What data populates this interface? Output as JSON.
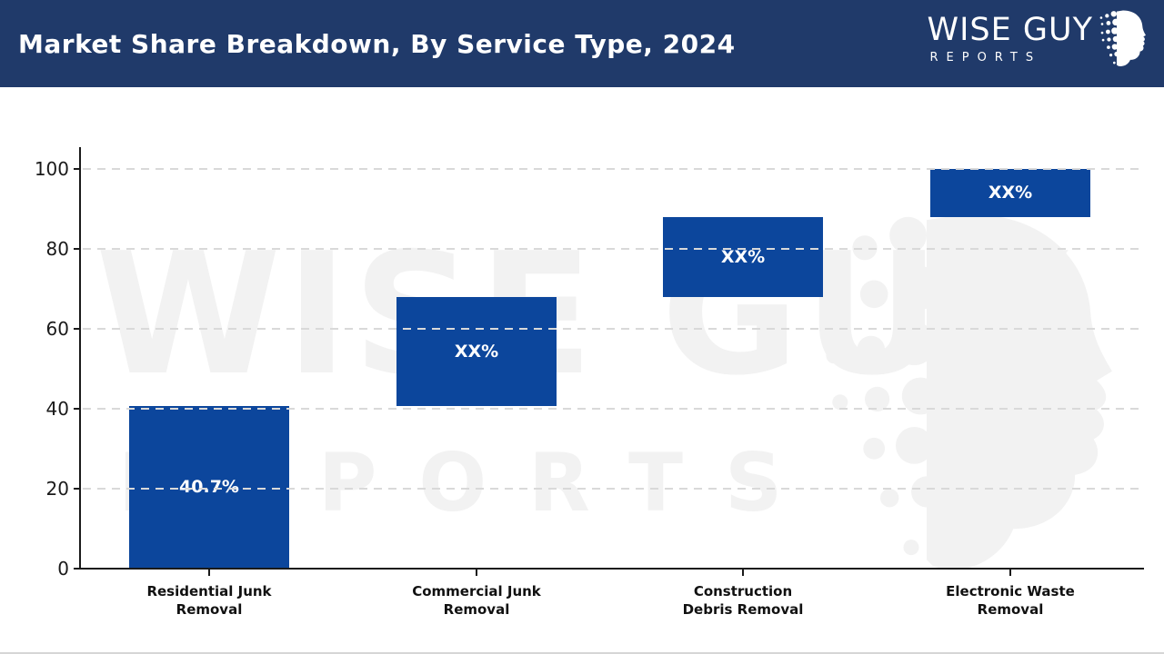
{
  "header": {
    "title": "Market Share Breakdown, By Service Type, 2024",
    "logo": {
      "line1": "WISE GUY",
      "line2": "REPORTS"
    }
  },
  "watermark": {
    "line1": "WISE GUY",
    "line2": "REPORTS"
  },
  "chart_data": {
    "type": "bar",
    "subtype": "waterfall",
    "title": "Market Share Breakdown, By Service Type, 2024",
    "categories": [
      "Residential Junk\nRemoval",
      "Commercial Junk\nRemoval",
      "Construction\nDebris Removal",
      "Electronic Waste\nRemoval"
    ],
    "segments": [
      {
        "category": "Residential Junk Removal",
        "start": 0,
        "end": 40.7,
        "label": "40.7%"
      },
      {
        "category": "Commercial Junk Removal",
        "start": 40.7,
        "end": 68,
        "label": "XX%"
      },
      {
        "category": "Construction Debris Removal",
        "start": 68,
        "end": 88,
        "label": "XX%"
      },
      {
        "category": "Electronic Waste Removal",
        "start": 88,
        "end": 100,
        "label": "XX%"
      }
    ],
    "ylim": [
      0,
      100
    ],
    "yticks": [
      0,
      20,
      40,
      60,
      80,
      100
    ],
    "xlabel": "",
    "ylabel": "",
    "grid": "dashed-horizontal",
    "legend": "none",
    "colors": {
      "header_bg": "#203a6a",
      "bar": "#0c469c",
      "bar_label": "#ffffff",
      "grid": "#d9d9d9",
      "axis": "#1a1a1a",
      "watermark": "#f2f2f2"
    }
  }
}
